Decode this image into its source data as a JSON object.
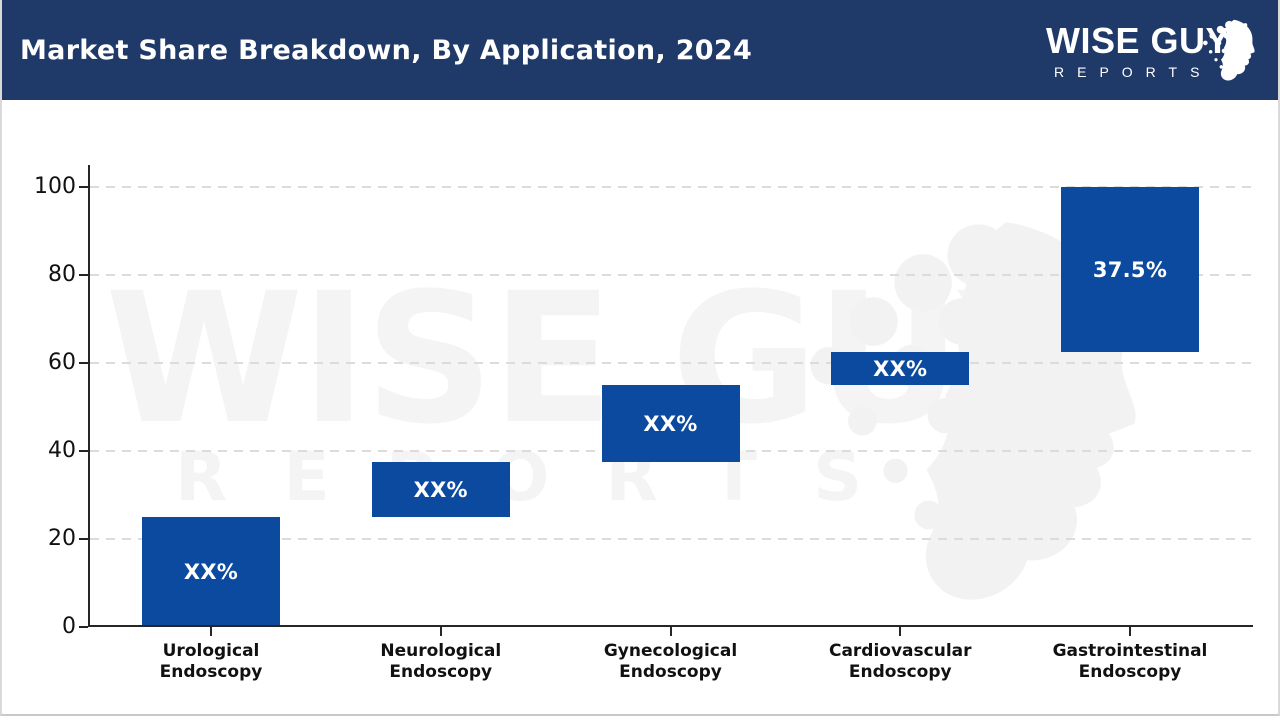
{
  "header": {
    "title": "Market Share Breakdown, By Application, 2024",
    "logo": {
      "wordmark": "WISE GUY",
      "subtext": "REPORTS"
    }
  },
  "watermark": {
    "wordmark": "WISE GUY",
    "subtext": "REPORTS"
  },
  "colors": {
    "header_bg": "#1f3a68",
    "bar": "#0b4a9e",
    "axis": "#262626",
    "gridline": "#dcdcdc",
    "bar_label": "#ffffff"
  },
  "chart_data": {
    "type": "bar",
    "subtype": "floating-segment-bars",
    "title": "Market Share Breakdown, By Application, 2024",
    "unit": "%",
    "ylim": [
      0,
      100
    ],
    "yticks": [
      0,
      20,
      40,
      60,
      80,
      100
    ],
    "grid": "horizontal-dashed",
    "legend": "none",
    "bar_color": "#0b4a9e",
    "bars": [
      {
        "category_lines": [
          "Urological",
          "Endoscopy"
        ],
        "start": 0,
        "end": 25,
        "value": 25,
        "label": "XX%"
      },
      {
        "category_lines": [
          "Neurological",
          "Endoscopy"
        ],
        "start": 25,
        "end": 37.5,
        "value": 12.5,
        "label": "XX%"
      },
      {
        "category_lines": [
          "Gynecological",
          "Endoscopy"
        ],
        "start": 37.5,
        "end": 55,
        "value": 17.5,
        "label": "XX%"
      },
      {
        "category_lines": [
          "Cardiovascular",
          "Endoscopy"
        ],
        "start": 55,
        "end": 62.5,
        "value": 7.5,
        "label": "XX%"
      },
      {
        "category_lines": [
          "Gastrointestinal",
          "Endoscopy"
        ],
        "start": 62.5,
        "end": 100,
        "value": 37.5,
        "label": "37.5%"
      }
    ]
  }
}
